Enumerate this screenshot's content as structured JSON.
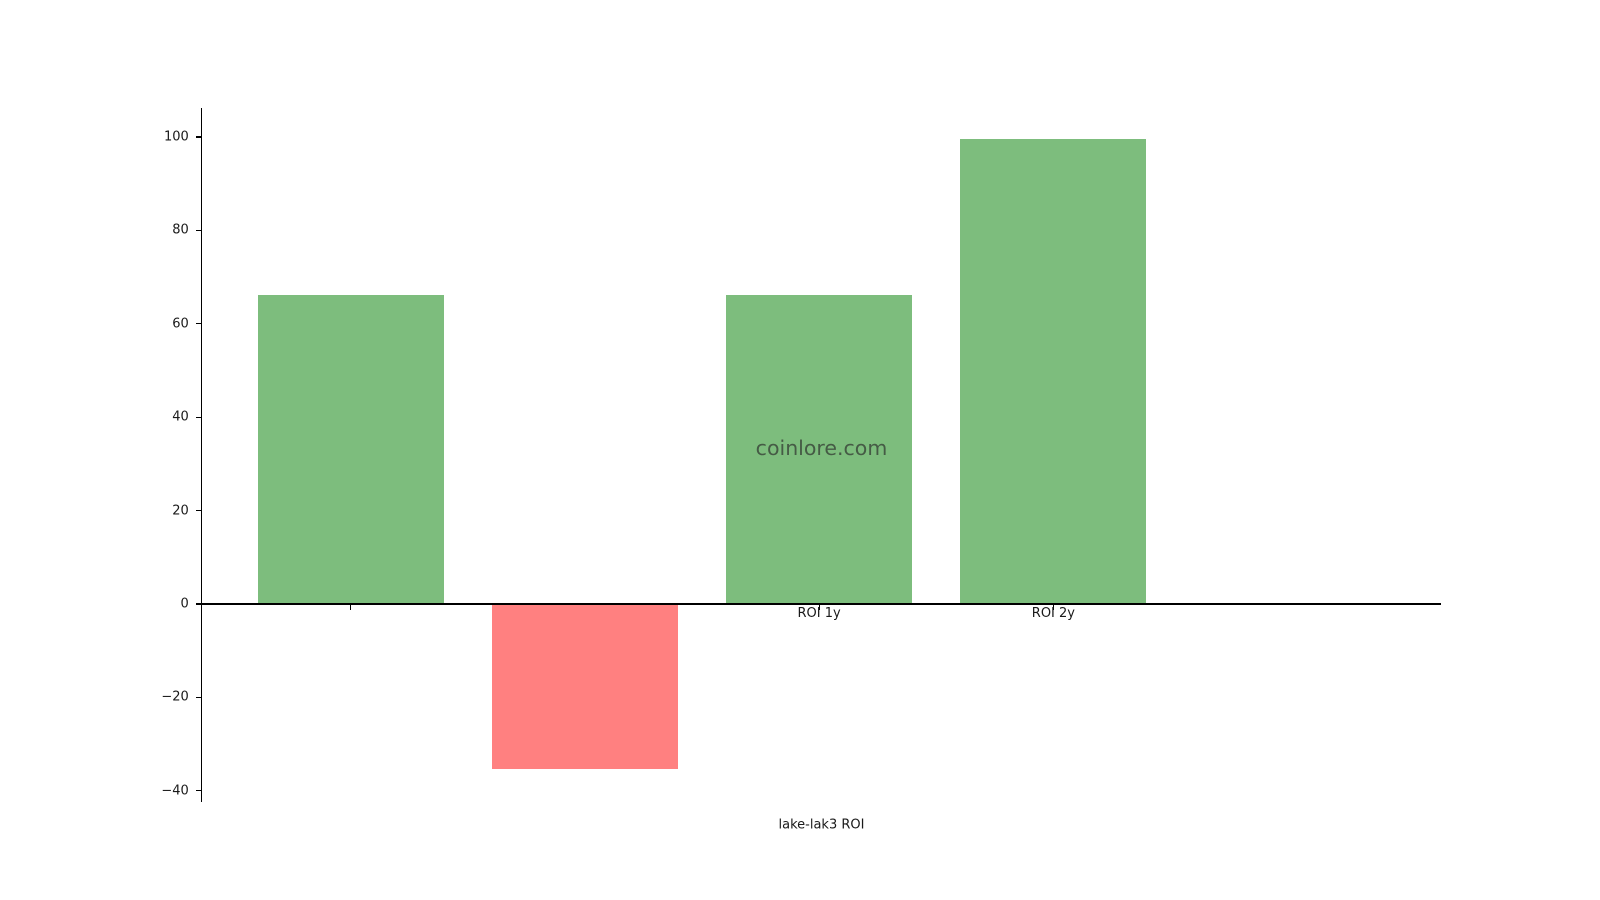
{
  "chart_data": {
    "type": "bar",
    "xlabel": "lake-lak3 ROI",
    "ylabel": "",
    "watermark": "coinlore.com",
    "categories": [
      "",
      "",
      "ROI 1y",
      "ROI 2y"
    ],
    "values": [
      66.2,
      -35.4,
      66.2,
      99.6
    ],
    "bar_colors": [
      "#7dbd7d",
      "#ff8080",
      "#7dbd7d",
      "#7dbd7d"
    ],
    "positive_color": "#7dbd7d",
    "negative_color": "#ff8080",
    "y_ticks": [
      100,
      80,
      60,
      40,
      20,
      0,
      -20,
      -40
    ],
    "ylim": [
      -42.4,
      106.2
    ],
    "grid": false,
    "legend": "none",
    "axis_color": "#000000",
    "text_color": "#1a1a1a"
  }
}
